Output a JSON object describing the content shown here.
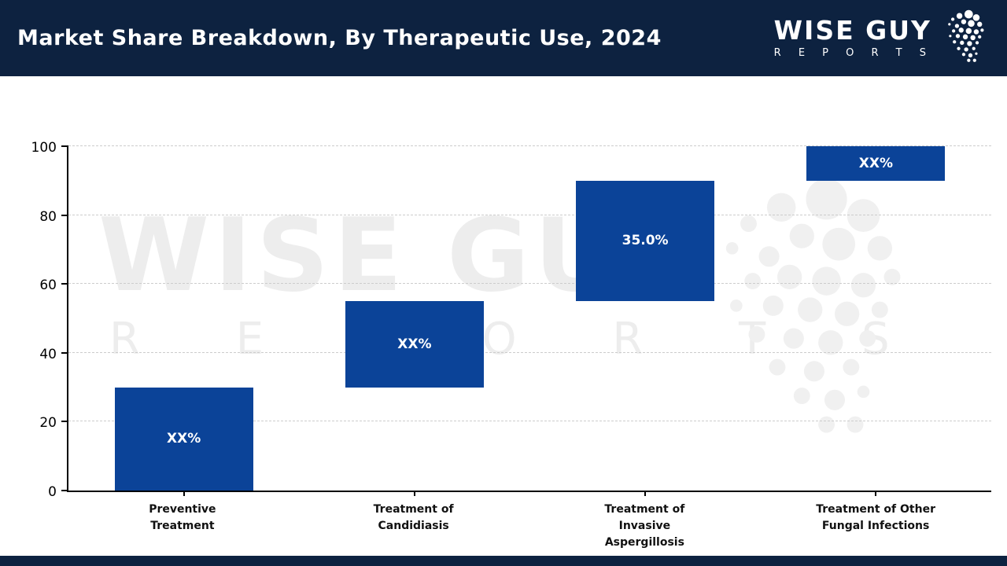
{
  "header": {
    "title": "Market Share Breakdown, By Therapeutic Use, 2024",
    "logo": {
      "line1": "WISE GUY",
      "line2": "R E P O R T S"
    }
  },
  "watermark": {
    "line1": "WISE GUY",
    "line2": "R E P O R T S"
  },
  "colors": {
    "header_bg": "#0d2240",
    "bar": "#0b4398",
    "bar_label": "#ffffff",
    "gridline": "#cccccc",
    "axis": "#000000",
    "watermark": "#ededed"
  },
  "chart_data": {
    "type": "bar",
    "subtype": "waterfall-floating-bars",
    "title": "Market Share Breakdown, By Therapeutic Use, 2024",
    "categories": [
      "Preventive\nTreatment",
      "Treatment of\nCandidiasis",
      "Treatment of\nInvasive\nAspergillosis",
      "Treatment of Other\nFungal Infections"
    ],
    "bars": [
      {
        "start": 0,
        "end": 30,
        "label": "XX%"
      },
      {
        "start": 30,
        "end": 55,
        "label": "XX%"
      },
      {
        "start": 55,
        "end": 90,
        "label": "35.0%"
      },
      {
        "start": 90,
        "end": 100,
        "label": "XX%"
      }
    ],
    "xlabel": "",
    "ylabel": "",
    "ylim": [
      0,
      100
    ],
    "yticks": [
      0,
      20,
      40,
      60,
      80,
      100
    ],
    "grid": "dashed-horizontal",
    "legend": "none"
  }
}
